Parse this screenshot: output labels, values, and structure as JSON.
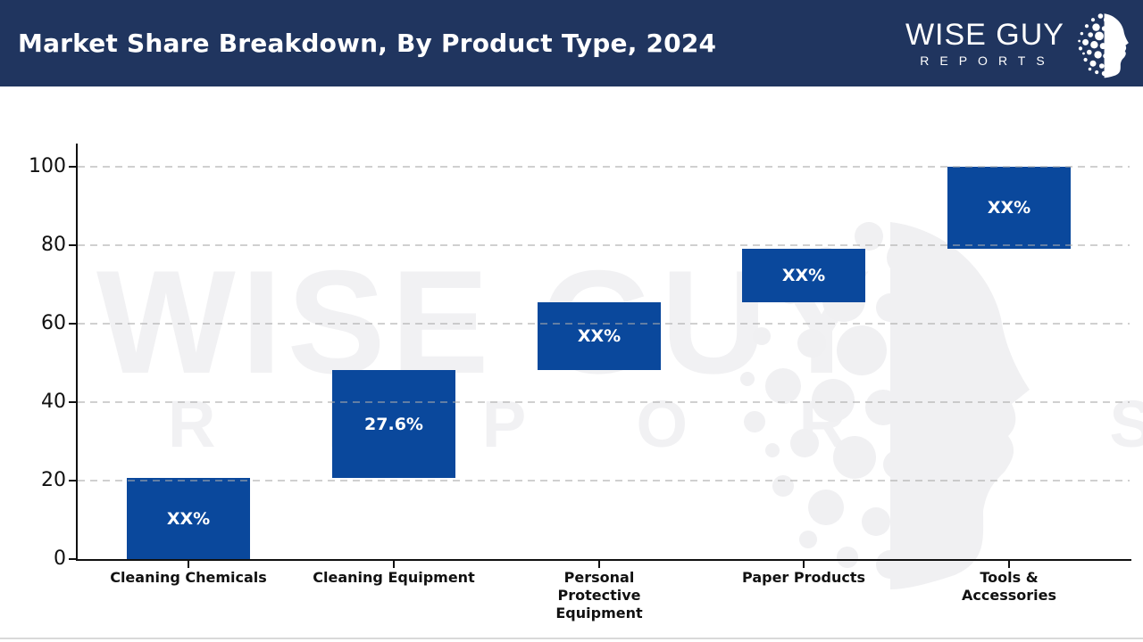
{
  "header": {
    "title": "Market Share Breakdown, By Product Type, 2024",
    "logo": {
      "line1": "WISE GUY",
      "line2": "REPORTS"
    },
    "bg_color": "#20355f"
  },
  "watermark": {
    "line1": "WISE GUY",
    "line2": "R E P O R T S"
  },
  "chart_data": {
    "type": "bar",
    "subtype": "waterfall",
    "title": "Market Share Breakdown, By Product Type, 2024",
    "categories": [
      "Cleaning Chemicals",
      "Cleaning Equipment",
      "Personal Protective Equipment",
      "Paper Products",
      "Tools & Accessories"
    ],
    "category_label_lines": [
      [
        "Cleaning Chemicals"
      ],
      [
        "Cleaning Equipment"
      ],
      [
        "Personal",
        "Protective",
        "Equipment"
      ],
      [
        "Paper Products"
      ],
      [
        "Tools &",
        "Accessories"
      ]
    ],
    "segments": [
      {
        "label": "XX%",
        "start": 0,
        "end": 20.6
      },
      {
        "label": "27.6%",
        "start": 20.6,
        "end": 48.2
      },
      {
        "label": "XX%",
        "start": 48.2,
        "end": 65.4
      },
      {
        "label": "XX%",
        "start": 65.4,
        "end": 79.2
      },
      {
        "label": "XX%",
        "start": 79.2,
        "end": 100
      }
    ],
    "ylim": [
      0,
      100
    ],
    "yticks": [
      0,
      20,
      40,
      60,
      80,
      100
    ],
    "grid": "horizontal dashed, drawn over bars",
    "legend": "none",
    "bar_color": "#0a489c",
    "bar_label_color": "#ffffff",
    "axis_color": "#111111"
  }
}
